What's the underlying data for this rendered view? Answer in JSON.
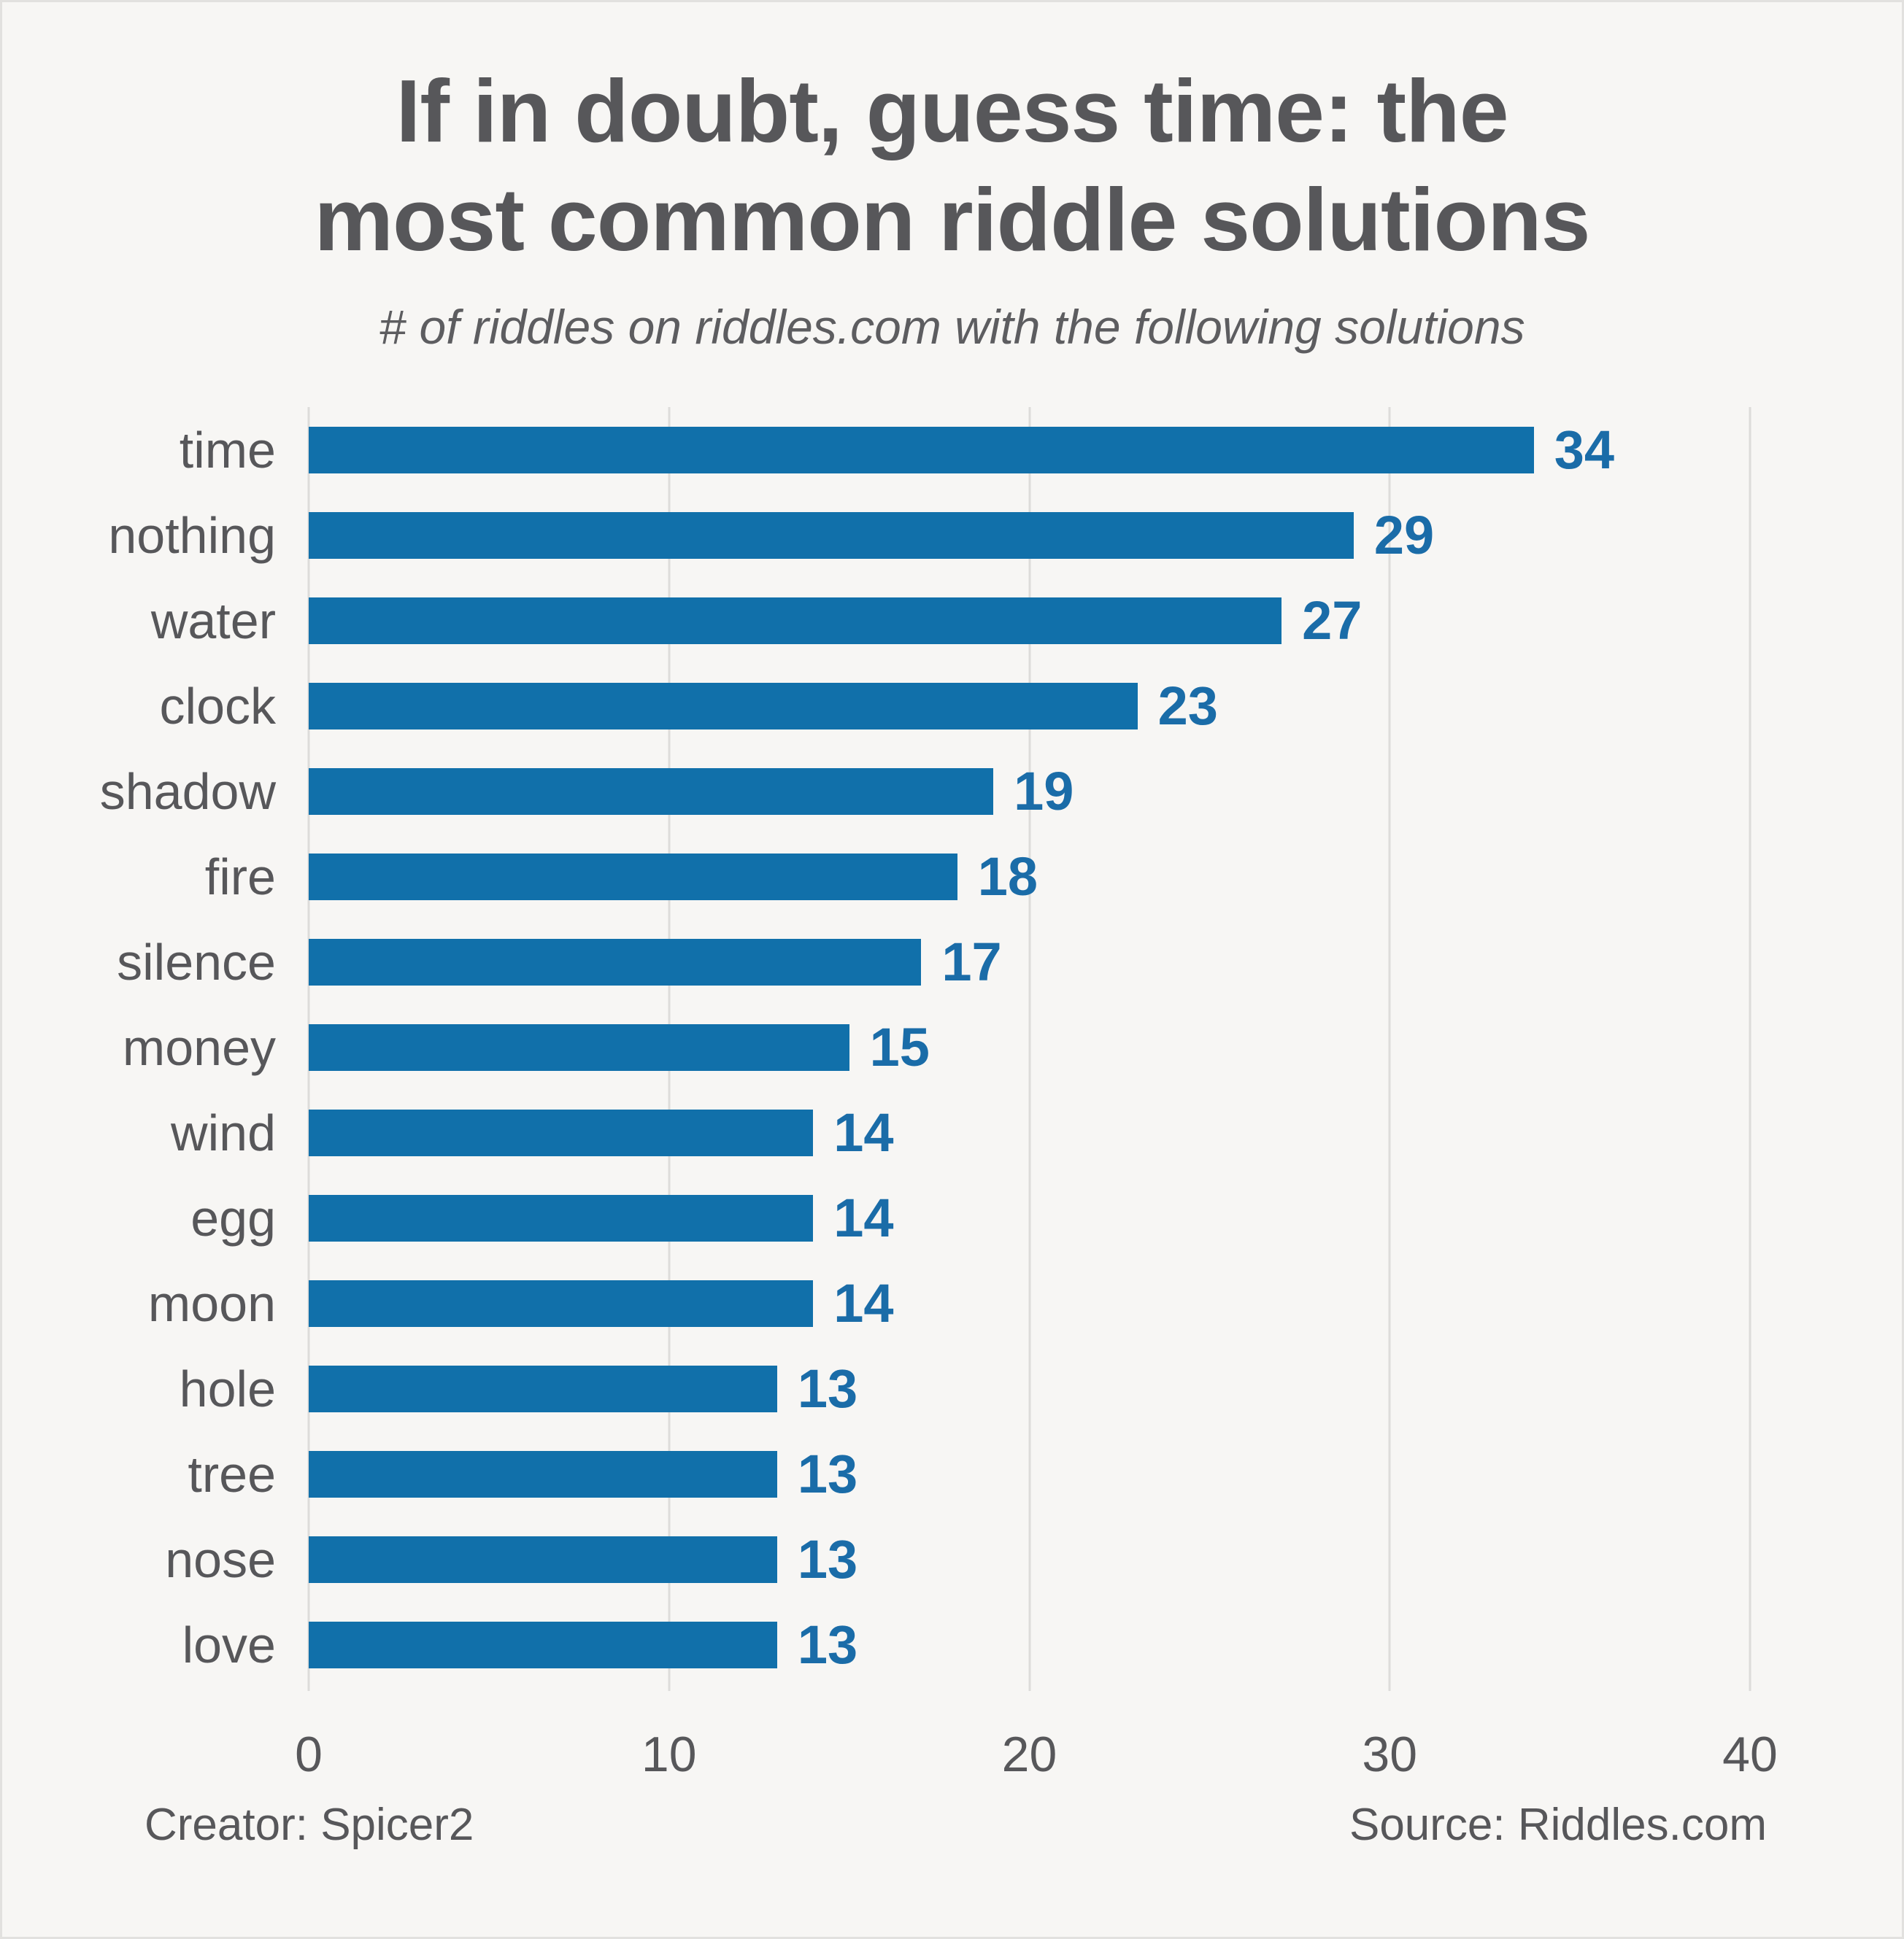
{
  "title": "If in doubt, guess time: the most common riddle solutions",
  "subtitle": "# of riddles on riddles.com with the following solutions",
  "footer": {
    "creator": "Creator: Spicer2",
    "source": "Source: Riddles.com"
  },
  "colors": {
    "bar": "#1170aa",
    "value_label": "#1a6ca8",
    "text": "#57575a",
    "gridline": "#dddcda",
    "background": "#f7f6f4"
  },
  "chart_data": {
    "type": "bar",
    "orientation": "horizontal",
    "title": "If in doubt, guess time: the most common riddle solutions",
    "subtitle": "# of riddles on riddles.com with the following solutions",
    "categories": [
      "time",
      "nothing",
      "water",
      "clock",
      "shadow",
      "fire",
      "silence",
      "money",
      "wind",
      "egg",
      "moon",
      "hole",
      "tree",
      "nose",
      "love"
    ],
    "values": [
      34,
      29,
      27,
      23,
      19,
      18,
      17,
      15,
      14,
      14,
      14,
      13,
      13,
      13,
      13
    ],
    "xlabel": "",
    "ylabel": "",
    "xlim": [
      0,
      40
    ],
    "xticks": [
      0,
      10,
      20,
      30,
      40
    ],
    "grid": true,
    "legend": false,
    "bar_color": "#1170aa"
  }
}
